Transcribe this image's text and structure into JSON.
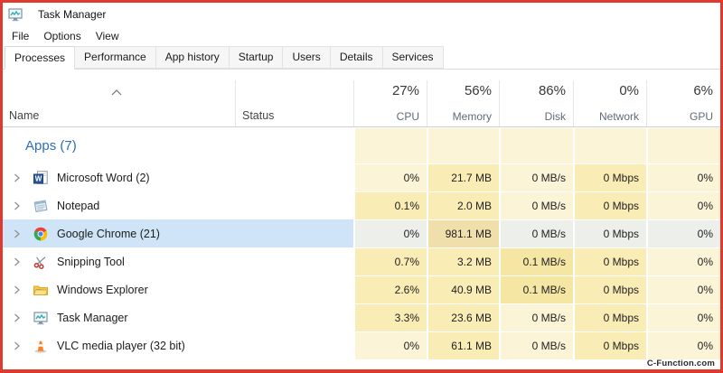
{
  "window": {
    "title": "Task Manager"
  },
  "menu": {
    "items": [
      "File",
      "Options",
      "View"
    ]
  },
  "tabs": {
    "active": "Processes",
    "items": [
      "Processes",
      "Performance",
      "App history",
      "Startup",
      "Users",
      "Details",
      "Services"
    ]
  },
  "columns": {
    "name": "Name",
    "status": "Status",
    "metrics": [
      {
        "label": "CPU",
        "total": "27%"
      },
      {
        "label": "Memory",
        "total": "56%"
      },
      {
        "label": "Disk",
        "total": "86%"
      },
      {
        "label": "Network",
        "total": "0%"
      },
      {
        "label": "GPU",
        "total": "6%"
      }
    ]
  },
  "groups": [
    {
      "label": "Apps (7)"
    }
  ],
  "processes": [
    {
      "name": "Microsoft Word (2)",
      "icon": "word-icon",
      "status": "",
      "selected": false,
      "cells": [
        {
          "v": "0%",
          "h": 0
        },
        {
          "v": "21.7 MB",
          "h": 1
        },
        {
          "v": "0 MB/s",
          "h": 0
        },
        {
          "v": "0 Mbps",
          "h": 1
        },
        {
          "v": "0%",
          "h": 0
        }
      ]
    },
    {
      "name": "Notepad",
      "icon": "notepad-icon",
      "status": "",
      "selected": false,
      "cells": [
        {
          "v": "0.1%",
          "h": 1
        },
        {
          "v": "2.0 MB",
          "h": 1
        },
        {
          "v": "0 MB/s",
          "h": 0
        },
        {
          "v": "0 Mbps",
          "h": 1
        },
        {
          "v": "0%",
          "h": 0
        }
      ]
    },
    {
      "name": "Google Chrome (21)",
      "icon": "chrome-icon",
      "status": "",
      "selected": true,
      "cells": [
        {
          "v": "0%",
          "h": 0
        },
        {
          "v": "981.1 MB",
          "h": 3
        },
        {
          "v": "0 MB/s",
          "h": 0
        },
        {
          "v": "0 Mbps",
          "h": 0
        },
        {
          "v": "0%",
          "h": 0
        }
      ]
    },
    {
      "name": "Snipping Tool",
      "icon": "snipping-tool-icon",
      "status": "",
      "selected": false,
      "cells": [
        {
          "v": "0.7%",
          "h": 1
        },
        {
          "v": "3.2 MB",
          "h": 1
        },
        {
          "v": "0.1 MB/s",
          "h": 2
        },
        {
          "v": "0 Mbps",
          "h": 1
        },
        {
          "v": "0%",
          "h": 0
        }
      ]
    },
    {
      "name": "Windows Explorer",
      "icon": "explorer-folder-icon",
      "status": "",
      "selected": false,
      "cells": [
        {
          "v": "2.6%",
          "h": 1
        },
        {
          "v": "40.9 MB",
          "h": 1
        },
        {
          "v": "0.1 MB/s",
          "h": 2
        },
        {
          "v": "0 Mbps",
          "h": 1
        },
        {
          "v": "0%",
          "h": 0
        }
      ]
    },
    {
      "name": "Task Manager",
      "icon": "task-manager-icon",
      "status": "",
      "selected": false,
      "cells": [
        {
          "v": "3.3%",
          "h": 1
        },
        {
          "v": "23.6 MB",
          "h": 1
        },
        {
          "v": "0 MB/s",
          "h": 0
        },
        {
          "v": "0 Mbps",
          "h": 1
        },
        {
          "v": "0%",
          "h": 0
        }
      ]
    },
    {
      "name": "VLC media player (32 bit)",
      "icon": "vlc-cone-icon",
      "status": "",
      "selected": false,
      "cells": [
        {
          "v": "0%",
          "h": 0
        },
        {
          "v": "61.1 MB",
          "h": 1
        },
        {
          "v": "0 MB/s",
          "h": 0
        },
        {
          "v": "0 Mbps",
          "h": 1
        },
        {
          "v": "0%",
          "h": 0
        }
      ]
    }
  ],
  "watermark": "C-Function.com",
  "colors": {
    "accent_border": "#e0392e",
    "selection_blue": "#cfe5f7",
    "group_text_blue": "#2e6db5",
    "heat_low": "#fcf4d6",
    "heat_mid": "#f9ecb5",
    "heat_mid2": "#f6e6a4",
    "heat_high": "#efdc9f"
  }
}
